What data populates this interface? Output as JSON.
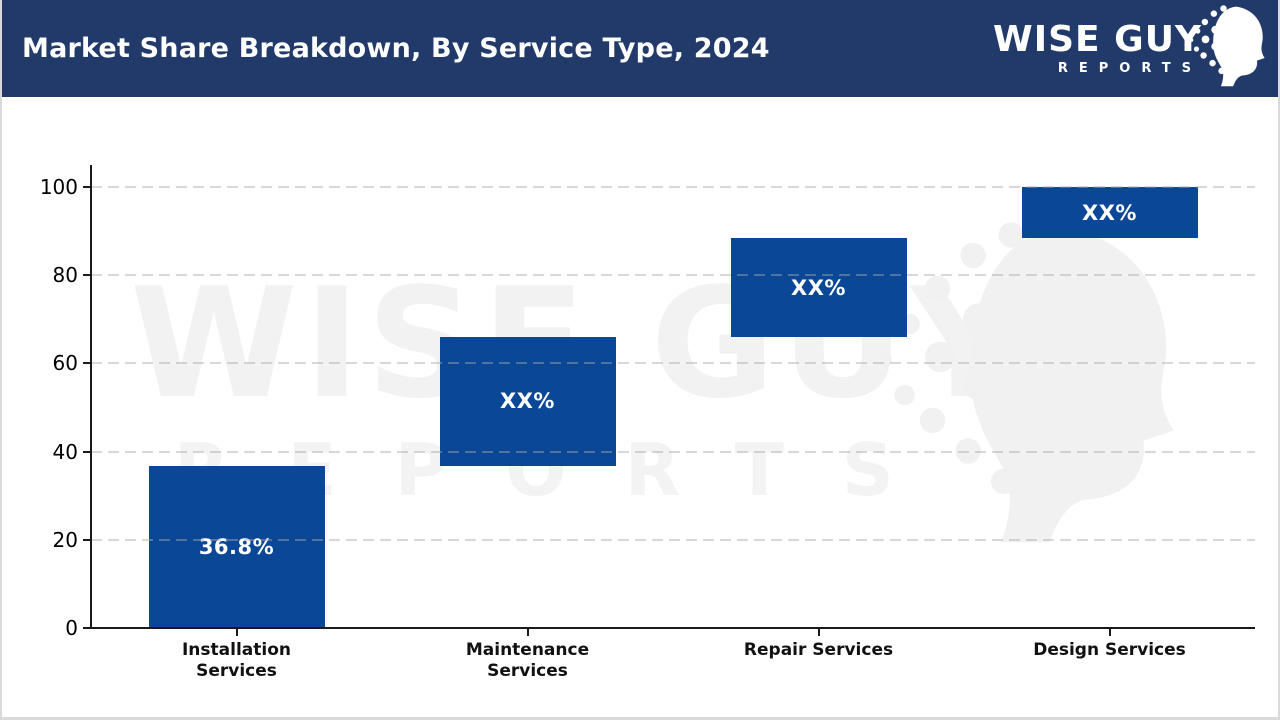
{
  "header": {
    "title": "Market Share Breakdown, By Service Type, 2024",
    "logo": {
      "line1": "WISE GUY",
      "line2": "REPORTS"
    }
  },
  "watermark": {
    "line1": "WISE GUY",
    "line2": "REPORTS"
  },
  "colors": {
    "header_bg": "#223a6a",
    "bar": "#0a4796",
    "axis": "#1a1a1a",
    "grid": "#dddddd",
    "watermark": "#f2f2f2",
    "bar_label_text": "#ffffff"
  },
  "chart_data": {
    "type": "bar",
    "subtype": "floating-waterfall",
    "title": "Market Share Breakdown, By Service Type, 2024",
    "categories": [
      "Installation Services",
      "Maintenance Services",
      "Repair Services",
      "Design Services"
    ],
    "category_lines": [
      [
        "Installation",
        "Services"
      ],
      [
        "Maintenance",
        "Services"
      ],
      [
        "Repair Services"
      ],
      [
        "Design Services"
      ]
    ],
    "bars": [
      {
        "category": "Installation Services",
        "start": 0,
        "end": 36.8,
        "label": "36.8%"
      },
      {
        "category": "Maintenance Services",
        "start": 36.8,
        "end": 66,
        "label": "XX%"
      },
      {
        "category": "Repair Services",
        "start": 66,
        "end": 88.4,
        "label": "XX%"
      },
      {
        "category": "Design Services",
        "start": 88.4,
        "end": 100,
        "label": "XX%"
      }
    ],
    "xlabel": "",
    "ylabel": "",
    "ylim": [
      0,
      100
    ],
    "yticks": [
      0,
      20,
      40,
      60,
      80,
      100
    ],
    "grid": "horizontal-dashed",
    "legend": "none"
  }
}
